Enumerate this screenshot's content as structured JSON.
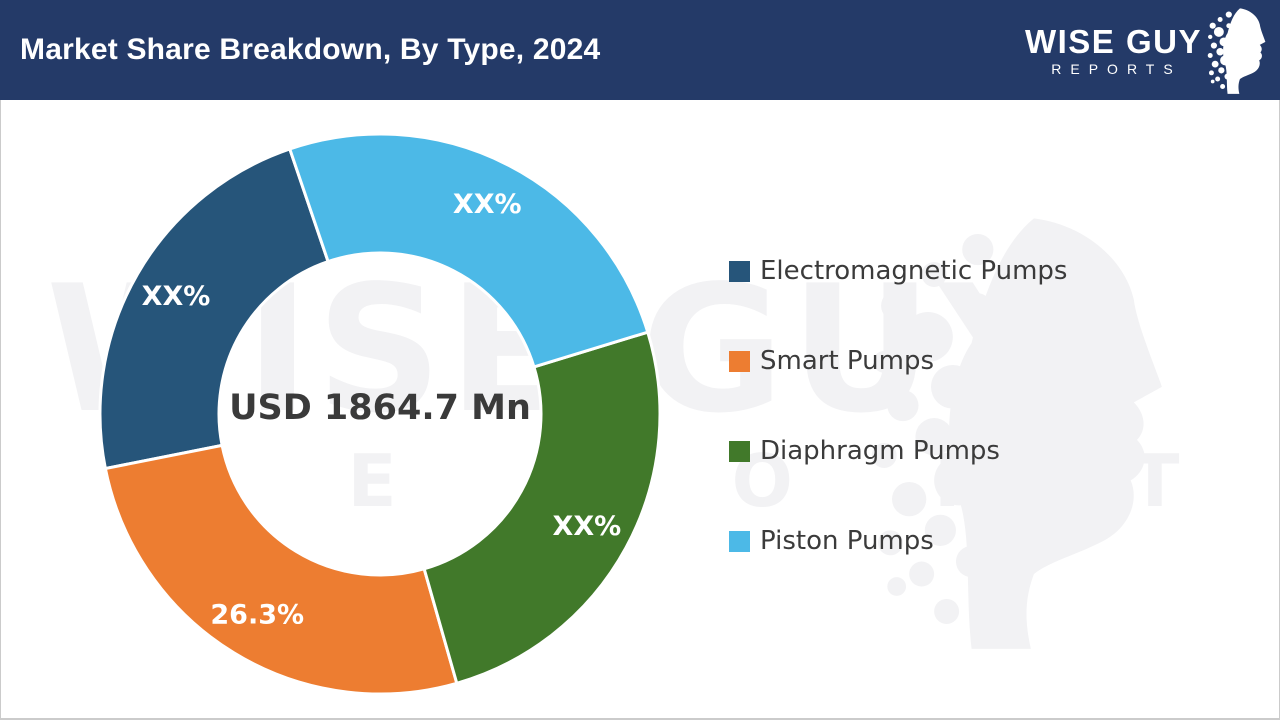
{
  "header": {
    "title": "Market Share Breakdown, By Type, 2024",
    "bg_color": "#243A68",
    "logo": {
      "line1": "WISE GUY",
      "line2": "REPORTS"
    }
  },
  "watermark": {
    "line1": "WISE GUY",
    "line2": "R E P O R T S",
    "color": "#f2f2f4"
  },
  "chart_data": {
    "type": "pie",
    "subtype": "donut",
    "title": "Market Share Breakdown, By Type, 2024",
    "center_label": "USD 1864.7 Mn",
    "start_angle_deg": 108.8,
    "direction": "counterclockwise",
    "donut_hole_ratio": 0.575,
    "legend_position": "right",
    "segments": [
      {
        "label": "Electromagnetic Pumps",
        "display_label": "XX%",
        "value_pct": 22.9,
        "color": "#26557A"
      },
      {
        "label": "Smart Pumps",
        "display_label": "26.3%",
        "value_pct": 26.3,
        "color": "#ED7D31"
      },
      {
        "label": "Diaphragm Pumps",
        "display_label": "XX%",
        "value_pct": 25.3,
        "color": "#41792A"
      },
      {
        "label": "Piston Pumps",
        "display_label": "XX%",
        "value_pct": 25.5,
        "color": "#4CB9E7"
      }
    ],
    "colors": {
      "slice_gap_stroke": "#ffffff",
      "center_label_color": "#3a3a3a",
      "slice_label_color": "#ffffff"
    }
  }
}
